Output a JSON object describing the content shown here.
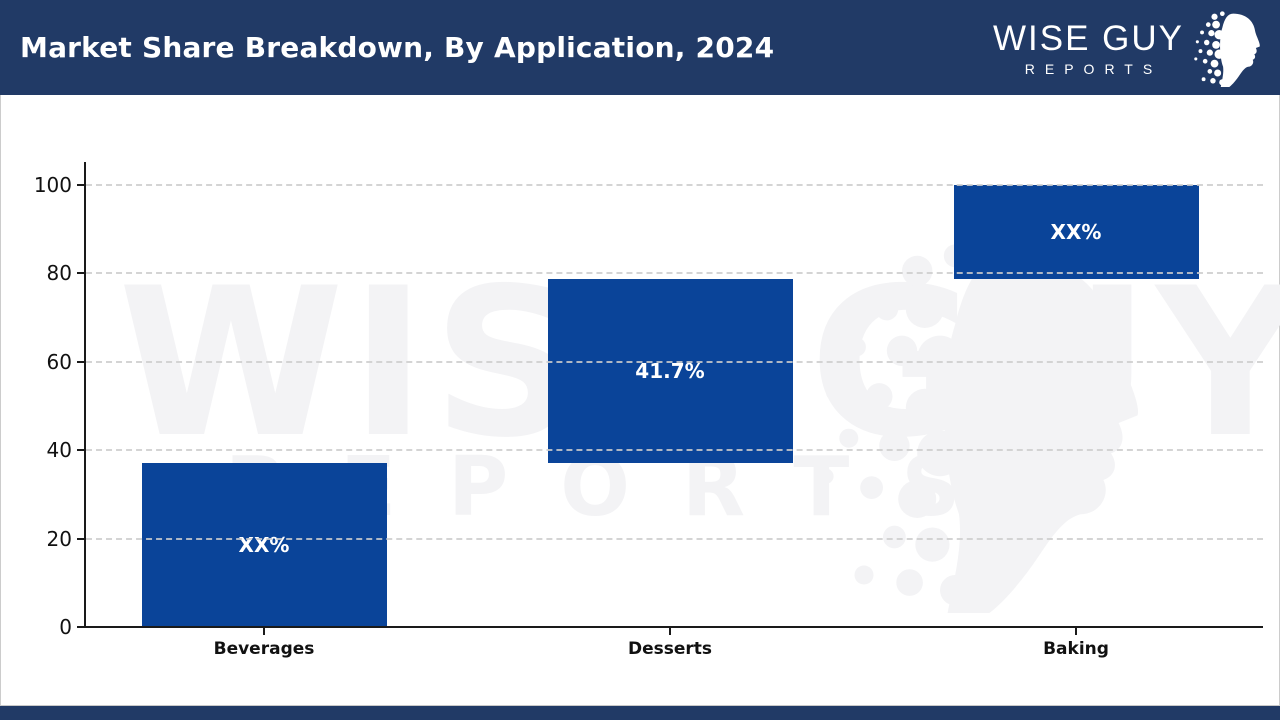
{
  "header": {
    "title": "Market Share Breakdown, By Application, 2024",
    "brand": {
      "line1": "WISE GUY",
      "line2": "REPORTS"
    }
  },
  "watermark": {
    "line1": "WISE GUY",
    "line2": "REPORTS"
  },
  "colors": {
    "header_bg": "#213a66",
    "footer_bg": "#213a66",
    "bar": "#0a4499",
    "grid": "#cdcdcd",
    "axis": "#1a1a1a",
    "bar_label_text": "#ffffff",
    "tick_text": "#111111",
    "watermark_text": "#f3f3f5"
  },
  "chart_data": {
    "type": "bar",
    "subtype": "waterfall",
    "title": "Market Share Breakdown, By Application, 2024",
    "categories": [
      "Beverages",
      "Desserts",
      "Baking"
    ],
    "segments": [
      {
        "category": "Beverages",
        "start": 0,
        "end": 37,
        "value": 37,
        "label": "XX%"
      },
      {
        "category": "Desserts",
        "start": 37,
        "end": 78.7,
        "value": 41.7,
        "label": "41.7%"
      },
      {
        "category": "Baking",
        "start": 78.7,
        "end": 100,
        "value": 21.3,
        "label": "XX%"
      }
    ],
    "xlabel": "",
    "ylabel": "",
    "ylim": [
      0,
      100
    ],
    "yticks": [
      0,
      20,
      40,
      60,
      80,
      100
    ],
    "grid": "horizontal-dashed",
    "legend": "none"
  }
}
